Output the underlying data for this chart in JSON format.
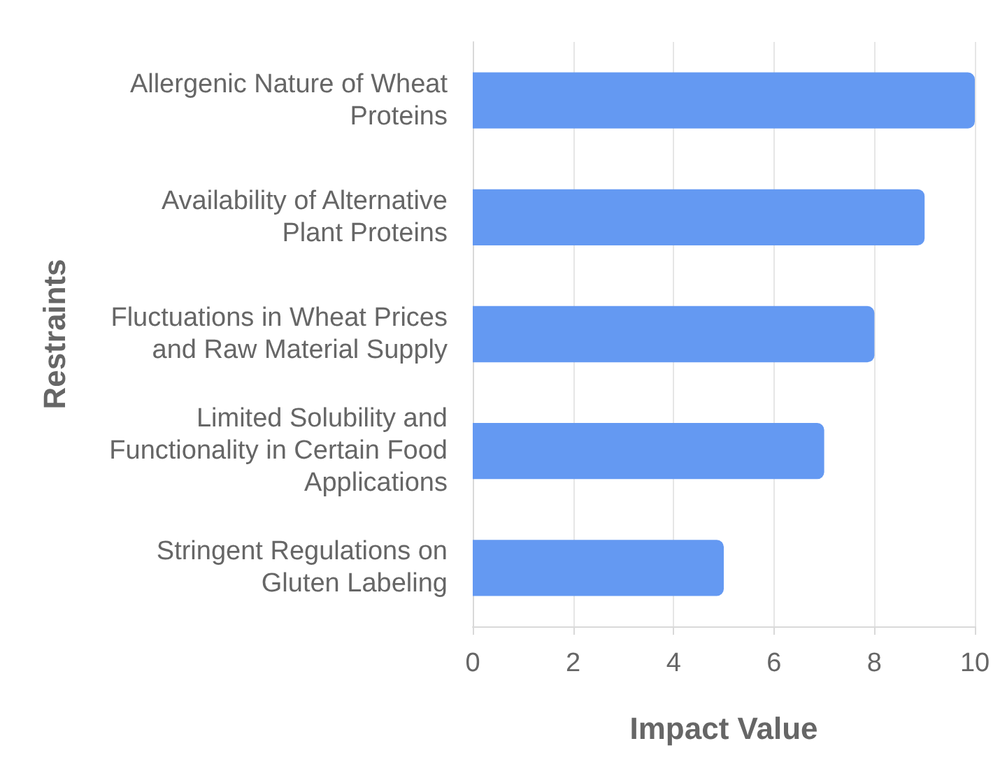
{
  "chart_data": {
    "type": "bar",
    "orientation": "horizontal",
    "xlabel": "Impact Value",
    "ylabel": "Restraints",
    "categories": [
      "Allergenic Nature of Wheat Proteins",
      "Availability of Alternative Plant Proteins",
      "Fluctuations in Wheat Prices and Raw Material Supply",
      "Limited Solubility and Functionality in Certain Food Applications",
      "Stringent Regulations on Gluten Labeling"
    ],
    "values": [
      10,
      9,
      8,
      7,
      5
    ],
    "color": "#6499f2",
    "xlim": [
      0,
      10
    ],
    "xticks": [
      0,
      2,
      4,
      6,
      8,
      10
    ],
    "grid": "x"
  }
}
